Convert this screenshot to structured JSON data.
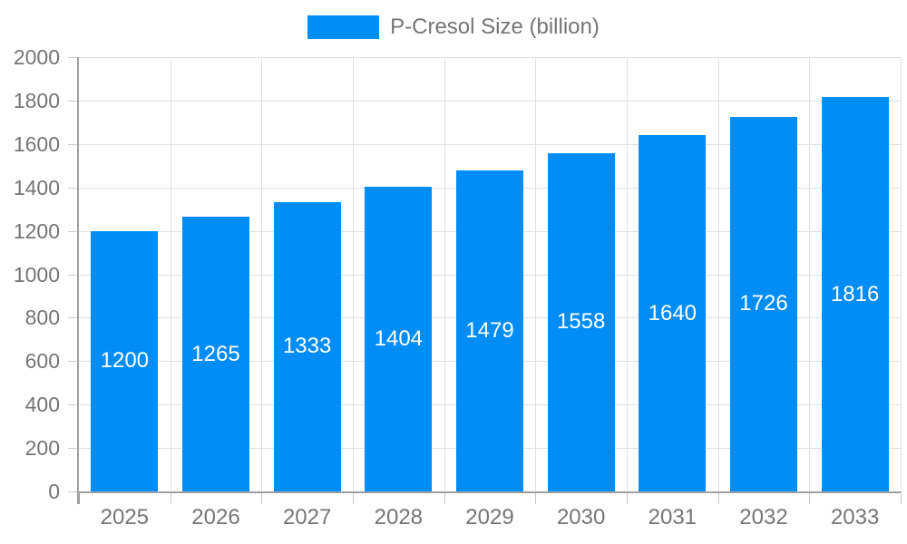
{
  "legend": {
    "label": "P-Cresol Size (billion)"
  },
  "colors": {
    "bar": "#008df8",
    "axis_text": "#757575",
    "value_label_text": "#ffffff",
    "gridline": "#e0e0e0",
    "axis_line": "#a0a0a0",
    "tick": "#c9c9c9",
    "background": "#ffffff"
  },
  "chart_data": {
    "type": "bar",
    "title": "",
    "legend": "P-Cresol Size (billion)",
    "legend_position": "top",
    "categories": [
      "2025",
      "2026",
      "2027",
      "2028",
      "2029",
      "2030",
      "2031",
      "2032",
      "2033"
    ],
    "values": [
      1200,
      1265,
      1333,
      1404,
      1479,
      1558,
      1640,
      1726,
      1816
    ],
    "value_labels": [
      "1200",
      "1265",
      "1333",
      "1404",
      "1479",
      "1558",
      "1640",
      "1726",
      "1816"
    ],
    "value_label_placement": "inside-center",
    "xlabel": "",
    "ylabel": "",
    "ylim": [
      0,
      2000
    ],
    "ytick_step": 200,
    "yticks": [
      "0",
      "200",
      "400",
      "600",
      "800",
      "1000",
      "1200",
      "1400",
      "1600",
      "1800",
      "2000"
    ],
    "grid": true
  }
}
